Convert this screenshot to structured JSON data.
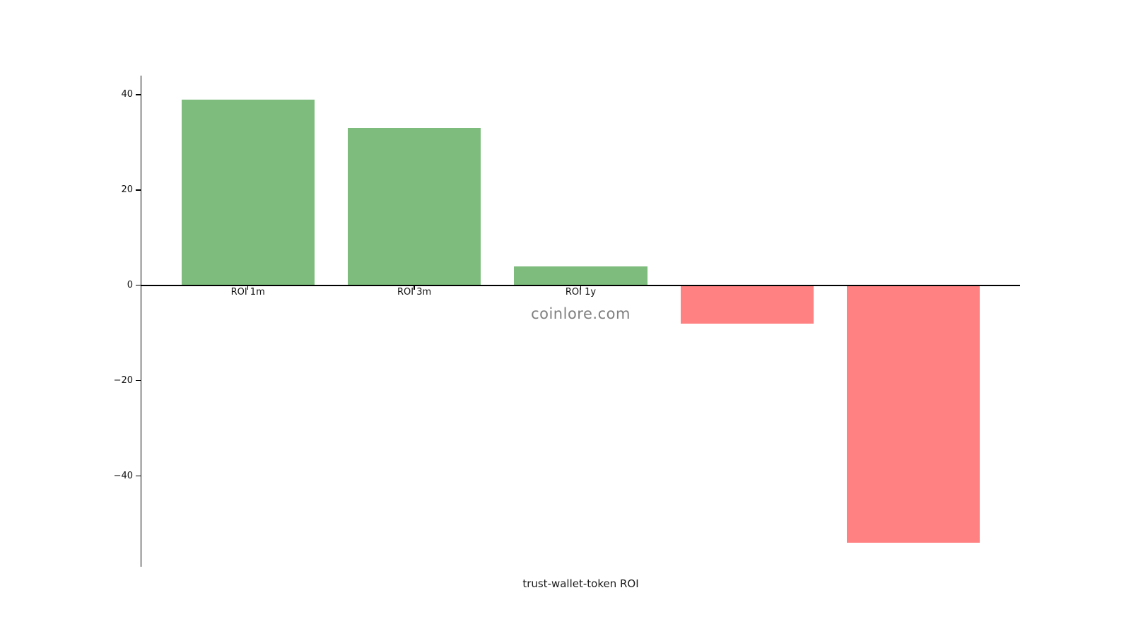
{
  "page": {
    "background": "#ffffff"
  },
  "watermark": {
    "text": "coinlore.com",
    "color": "#808080"
  },
  "footer_title": {
    "text": "trust-wallet-token ROI",
    "color": "#1a1a1a"
  },
  "chart_data": {
    "type": "bar",
    "title": "trust-wallet-token ROI",
    "categories": [
      "ROI 1m",
      "ROI 3m",
      "ROI 1y",
      "",
      ""
    ],
    "values": [
      39,
      33,
      4,
      -8,
      -54
    ],
    "series": [
      {
        "name": "trust-wallet-token ROI",
        "values": [
          39,
          33,
          4,
          -8,
          -54
        ]
      }
    ],
    "positive_color": "#7dbc7d",
    "negative_color": "#ff8181",
    "bar_colors": [
      "#7dbc7d",
      "#7dbc7d",
      "#7dbc7d",
      "#ff8181",
      "#ff8181"
    ],
    "yticks": [
      40,
      20,
      0,
      -20,
      -40
    ],
    "ytick_labels": [
      "40",
      "20",
      "0",
      "−20",
      "−40"
    ],
    "ylim": [
      -59,
      44
    ],
    "xlabel": "",
    "ylabel": "",
    "grid": false,
    "legend": "none",
    "axis_color": "#000000",
    "note": "x tick labels of the two negative bars are occluded by the red bars"
  }
}
